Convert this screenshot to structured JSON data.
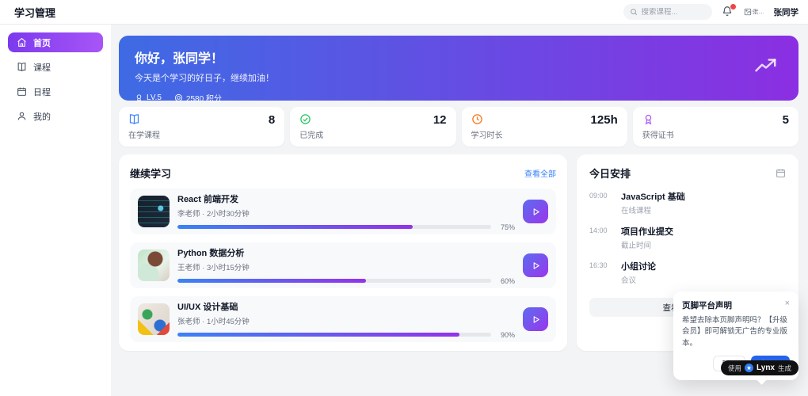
{
  "header": {
    "title": "学习管理",
    "search_placeholder": "搜索课程...",
    "avatar_alt": "张同学",
    "user_name": "张同学"
  },
  "sidebar": {
    "items": [
      {
        "label": "首页",
        "icon": "home",
        "active": true
      },
      {
        "label": "课程",
        "icon": "book",
        "active": false
      },
      {
        "label": "日程",
        "icon": "calendar",
        "active": false
      },
      {
        "label": "我的",
        "icon": "user",
        "active": false
      }
    ]
  },
  "hero": {
    "greeting": "你好，张同学！",
    "subtitle": "今天是个学习的好日子，继续加油！",
    "level_badge": "LV.5",
    "points_badge": "2580 积分",
    "trend_icon": "trending-up-icon"
  },
  "stats": [
    {
      "value": "8",
      "label": "在学课程",
      "icon": "book-open-icon",
      "color": "#3b82f6"
    },
    {
      "value": "12",
      "label": "已完成",
      "icon": "check-circle-icon",
      "color": "#22c55e"
    },
    {
      "value": "125h",
      "label": "学习时长",
      "icon": "clock-icon",
      "color": "#f97316"
    },
    {
      "value": "5",
      "label": "获得证书",
      "icon": "award-icon",
      "color": "#a855f7"
    }
  ],
  "continue_learning": {
    "title": "继续学习",
    "view_all": "查看全部",
    "courses": [
      {
        "title": "React 前端开发",
        "meta": "李老师 · 2小时30分钟",
        "progress": 75,
        "progress_label": "75%"
      },
      {
        "title": "Python 数据分析",
        "meta": "王老师 · 3小时15分钟",
        "progress": 60,
        "progress_label": "60%"
      },
      {
        "title": "UI/UX 设计基础",
        "meta": "张老师 · 1小时45分钟",
        "progress": 90,
        "progress_label": "90%"
      }
    ]
  },
  "today": {
    "title": "今日安排",
    "items": [
      {
        "time": "09:00",
        "title": "JavaScript 基础",
        "type": "在线课程"
      },
      {
        "time": "14:00",
        "title": "项目作业提交",
        "type": "截止时间"
      },
      {
        "time": "16:30",
        "title": "小组讨论",
        "type": "会议"
      }
    ],
    "view_full": "查看完整日程"
  },
  "popup": {
    "title": "页脚平台声明",
    "close": "×",
    "body": "希望去除本页脚声明吗？【升级会员】即可解锁无广告的专业版本。",
    "dismiss_label": "暂不",
    "upgrade_label": "去升级"
  },
  "generator_badge": {
    "prefix": "使用",
    "brand": "Lynx",
    "suffix": "生成"
  },
  "colors": {
    "hero_gradient_start": "#3e6be4",
    "hero_gradient_end": "#8b2fe2",
    "sidebar_active_start": "#7c3aed",
    "sidebar_active_end": "#a855f7",
    "progress_start": "#3b82f6",
    "progress_end": "#9333ea",
    "link_blue": "#3b82f6",
    "upgrade_blue": "#2563eb",
    "notification_red": "#ef4444",
    "badge_black": "#111111"
  }
}
